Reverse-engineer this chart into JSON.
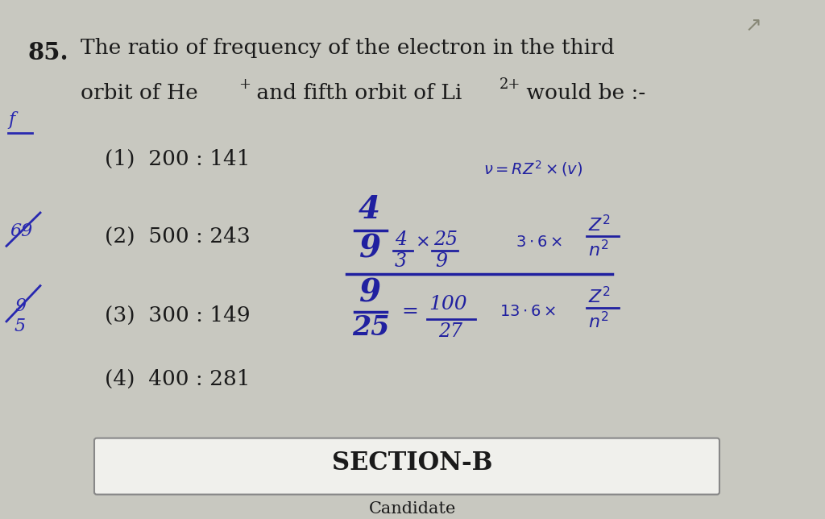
{
  "bg_color": "#c8c8c0",
  "paper_color": "#e8e8e0",
  "text_color": "#1a1a1a",
  "hw_color": "#2020a0",
  "left_color": "#2828b0",
  "title_fontsize": 19,
  "option_fontsize": 19,
  "section_fontsize": 20,
  "q_number": "85.",
  "q_line1": "The ratio of frequency of the electron in the third",
  "q_line2_a": "orbit of He",
  "q_line2_sup1": "+",
  "q_line2_b": " and fifth orbit of Li",
  "q_line2_sup2": "2+",
  "q_line2_c": " would be :-",
  "options": [
    "(1)  200 : 141",
    "(2)  500 : 243",
    "(3)  300 : 149",
    "(4)  400 : 281"
  ],
  "section_label": "SECTION-B",
  "candidate_label": "Candidate"
}
